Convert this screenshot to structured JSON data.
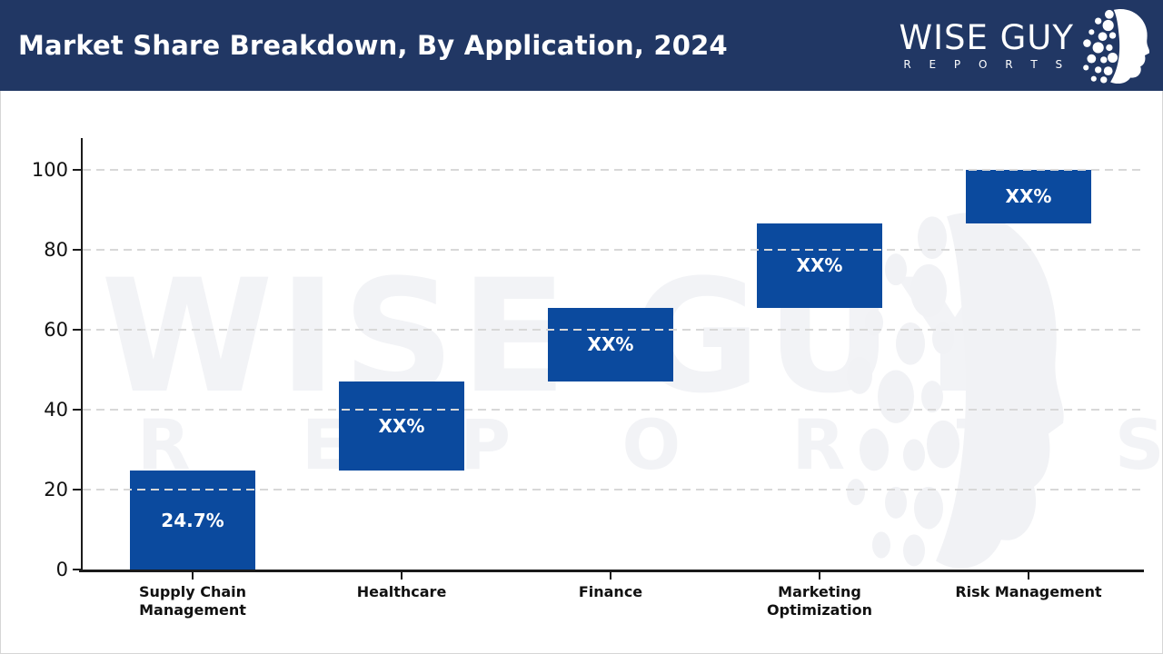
{
  "header": {
    "title": "Market Share Breakdown, By Application, 2024",
    "logo": {
      "line1": "WISE GUY",
      "line2": "R E P O R T S"
    }
  },
  "watermark": {
    "line1": "WISE GUY",
    "line2": "R E P O R T S"
  },
  "colors": {
    "header_bg": "#213764",
    "bar": "#0b4a9e",
    "grid": "#d8d8d8",
    "axis": "#1a1a1a",
    "watermark": "#f2f3f6",
    "bar_label_text": "#ffffff",
    "tick_text": "#111111"
  },
  "chart_data": {
    "type": "bar",
    "subtype": "floating-waterfall",
    "title": "Market Share Breakdown, By Application, 2024",
    "categories": [
      "Supply Chain Management",
      "Healthcare",
      "Finance",
      "Marketing Optimization",
      "Risk Management"
    ],
    "category_label_lines": [
      [
        "Supply Chain",
        "Management"
      ],
      [
        "Healthcare"
      ],
      [
        "Finance"
      ],
      [
        "Marketing",
        "Optimization"
      ],
      [
        "Risk Management"
      ]
    ],
    "series": [
      {
        "name": "Market Share (%)",
        "segments": [
          {
            "category": "Supply Chain Management",
            "start": 0,
            "end": 24.7,
            "label": "24.7%"
          },
          {
            "category": "Healthcare",
            "start": 24.7,
            "end": 47.0,
            "label": "XX%"
          },
          {
            "category": "Finance",
            "start": 47.0,
            "end": 65.5,
            "label": "XX%"
          },
          {
            "category": "Marketing Optimization",
            "start": 65.5,
            "end": 86.6,
            "label": "XX%"
          },
          {
            "category": "Risk Management",
            "start": 86.6,
            "end": 100,
            "label": "XX%"
          }
        ]
      }
    ],
    "bar_labels": [
      "24.7%",
      "XX%",
      "XX%",
      "XX%",
      "XX%"
    ],
    "xlabel": "",
    "ylabel": "",
    "ylim": [
      0,
      100
    ],
    "yticks": [
      0,
      20,
      40,
      60,
      80,
      100
    ],
    "grid": "horizontal-dashed-on-top",
    "legend": "none"
  }
}
